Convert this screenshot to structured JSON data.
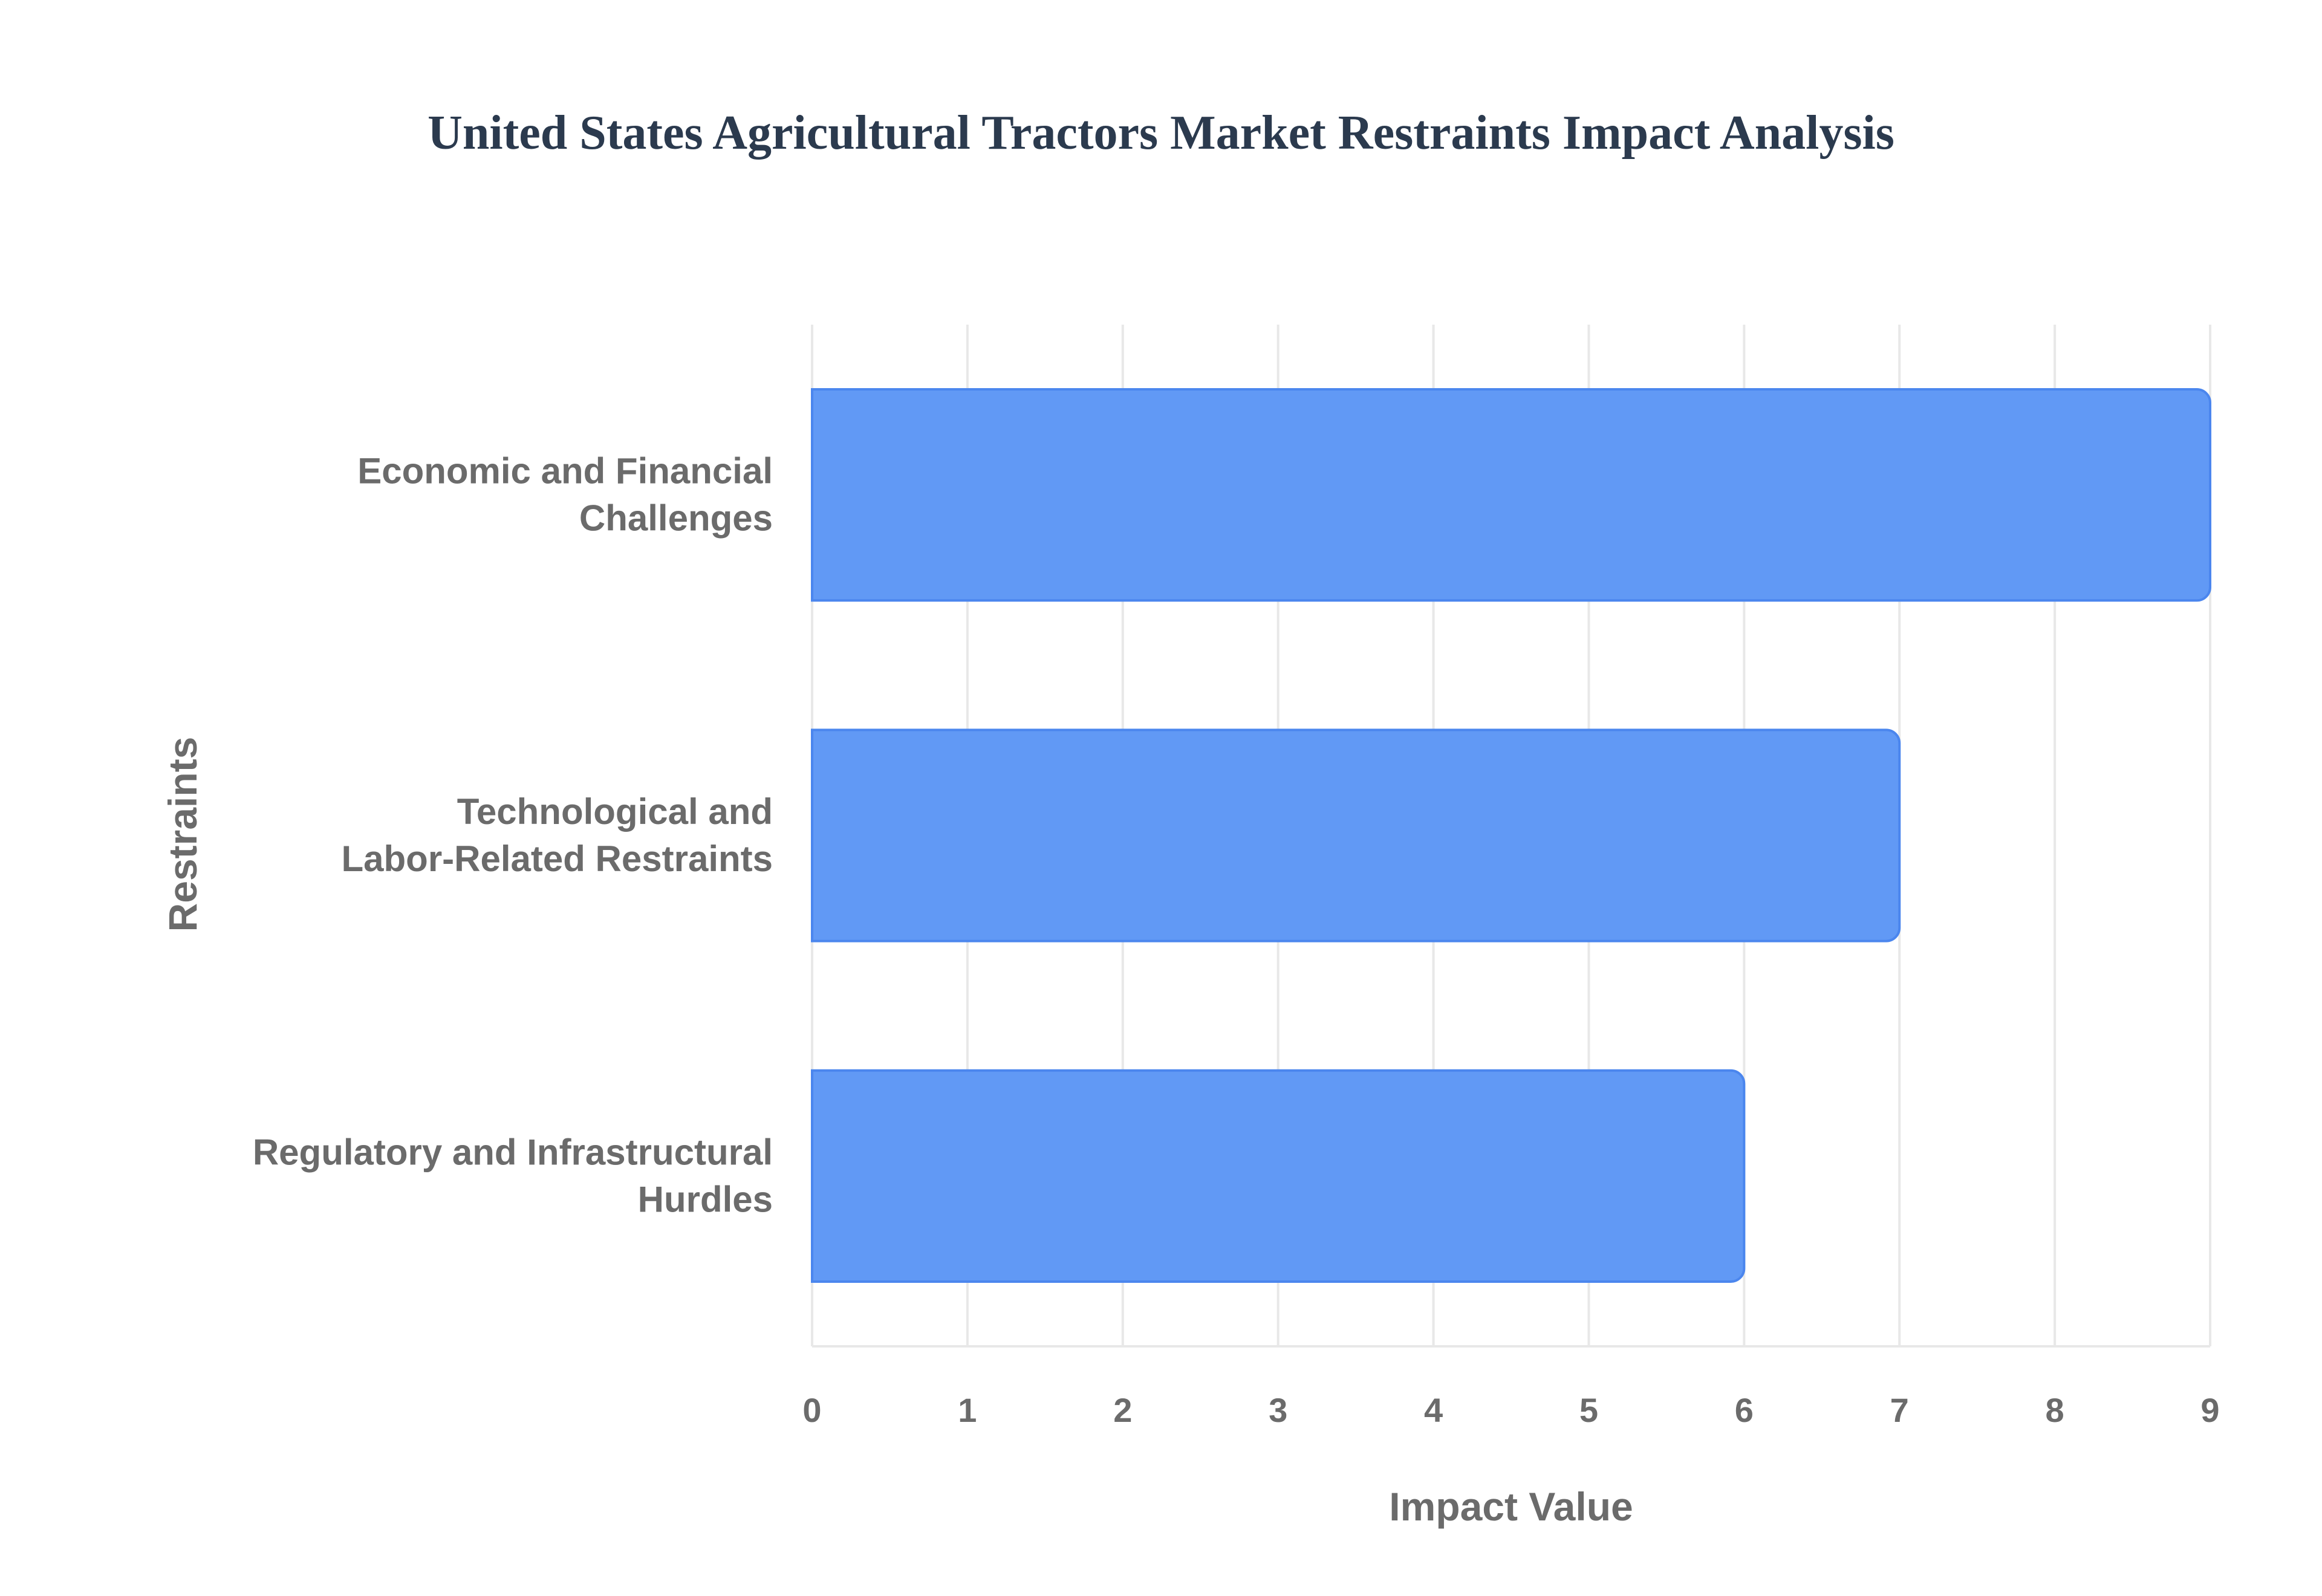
{
  "chart_data": {
    "type": "bar",
    "orientation": "horizontal",
    "title": "United States Agricultural Tractors Market Restraints Impact Analysis",
    "xlabel": "Impact Value",
    "ylabel": "Restraints",
    "categories": [
      [
        "Economic and Financial",
        "Challenges"
      ],
      [
        "Technological and",
        "Labor-Related Restraints"
      ],
      [
        "Regulatory and Infrastructural",
        "Hurdles"
      ]
    ],
    "values": [
      9,
      7,
      6
    ],
    "xlim": [
      0,
      9
    ],
    "xticks": [
      "0",
      "1",
      "2",
      "3",
      "4",
      "5",
      "6",
      "7",
      "8",
      "9"
    ],
    "grid": true,
    "colors": {
      "bar": "#6199f5",
      "bar_edge": "#4b86ee",
      "grid": "#e8e8e8",
      "axis_text": "#6b6b6b",
      "title": "#2b3a4e"
    }
  }
}
